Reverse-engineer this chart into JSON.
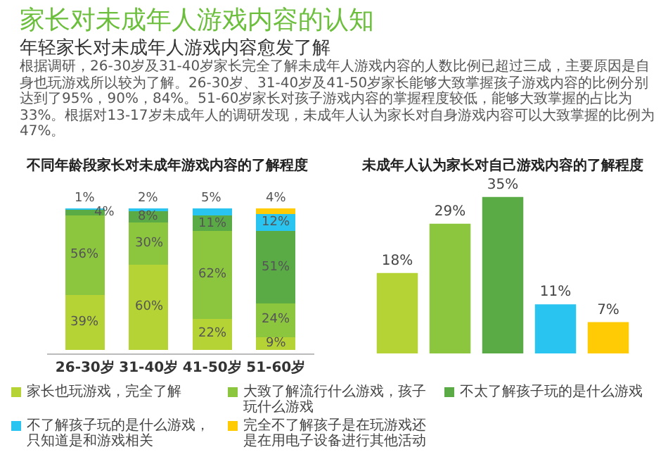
{
  "chart_data": [
    {
      "type": "other",
      "title": "家长对未成年人游戏内容的认知",
      "subtitle": "年轻家长对未成年人游戏内容愈发了解",
      "annotations": [
        "根据调研，26-30岁及31-40岁家长完全了解未成年人游戏内容的人数比例已超过三成，主要原因是自身也玩游戏所以较为了解。26-30岁、31-40岁及41-50岁家长能够大致掌握孩子游戏内容的比例分别达到了95%，90%，84%。51-60岁家长对孩子游戏内容的掌握程度较低，能够大致掌握的占比为33%。根据对13-17岁未成年人的调研发现，未成年人认为家长对自身游戏内容可以大致掌握的比例为47%。"
      ]
    },
    {
      "type": "bar",
      "stacked": true,
      "title": "不同年龄段家长对未成年游戏内容的了解程度",
      "categories": [
        "26-30岁",
        "31-40岁",
        "41-50岁",
        "51-60岁"
      ],
      "legend": "bottom",
      "series": [
        {
          "name": "家长也玩游戏，完全了解",
          "color": "#b5d334",
          "values": [
            39,
            60,
            22,
            9
          ],
          "value_labels": [
            "39%",
            "60%",
            "22%",
            "9%"
          ]
        },
        {
          "name": "大致了解流行什么游戏，孩子玩什么游戏",
          "color": "#8cc63f",
          "values": [
            56,
            30,
            62,
            24
          ],
          "value_labels": [
            "56%",
            "30%",
            "62%",
            "24%"
          ]
        },
        {
          "name": "不太了解孩子玩的是什么游戏",
          "color": "#5aaa46",
          "values": [
            4,
            8,
            11,
            51
          ],
          "value_labels": [
            "4%",
            "8%",
            "11%",
            "51%"
          ]
        },
        {
          "name": "不了解孩子玩的是什么游戏，只知道是和游戏相关",
          "color": "#29c4ef",
          "values": [
            1,
            2,
            5,
            12
          ],
          "value_labels": [
            "1%",
            "2%",
            "5%",
            "12%"
          ]
        },
        {
          "name": "完全不了解孩子是在玩游戏还是在用电子设备进行其他活动",
          "color": "#ffcb05",
          "values": [
            null,
            null,
            null,
            4
          ],
          "value_labels": [
            null,
            null,
            null,
            "4%"
          ]
        }
      ]
    },
    {
      "type": "bar",
      "title": "未成年人认为家长对自己游戏内容的了解程度",
      "categories": [
        null,
        null,
        null,
        null,
        null
      ],
      "colors": [
        "#b5d334",
        "#8cc63f",
        "#5aaa46",
        "#29c4ef",
        "#ffcb05"
      ],
      "values": [
        18,
        29,
        35,
        11,
        7
      ],
      "value_labels": [
        "18%",
        "29%",
        "35%",
        "11%",
        "7%"
      ]
    }
  ]
}
